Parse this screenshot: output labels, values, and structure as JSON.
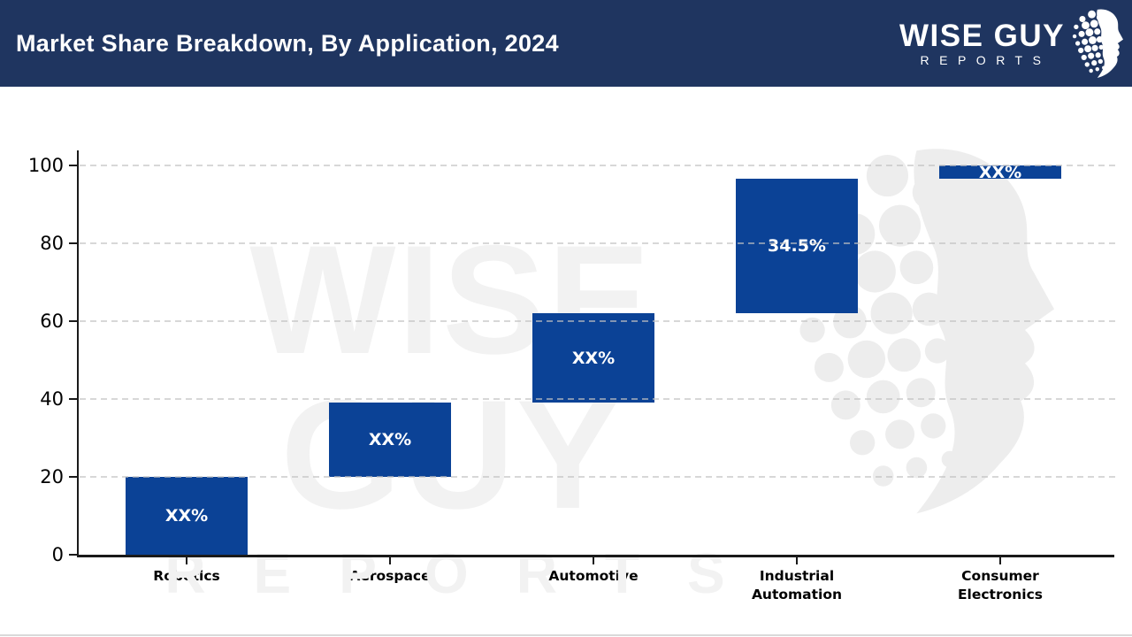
{
  "header": {
    "title": "Market Share Breakdown, By Application, 2024",
    "logo": {
      "name": "WISE GUY",
      "tagline": "REPORTS"
    }
  },
  "watermark": {
    "line1": "WISE GUY",
    "line2": "REPORTS"
  },
  "chart_data": {
    "type": "bar",
    "subtype": "waterfall",
    "title": "Market Share Breakdown, By Application, 2024",
    "categories": [
      "Robotics",
      "Aerospace",
      "Automotive",
      "Industrial Automation",
      "Consumer Electronics"
    ],
    "segments": [
      {
        "category": "Robotics",
        "start": 0,
        "end": 20,
        "value_label": "XX%"
      },
      {
        "category": "Aerospace",
        "start": 20,
        "end": 39,
        "value_label": "XX%"
      },
      {
        "category": "Automotive",
        "start": 39,
        "end": 62,
        "value_label": "XX%"
      },
      {
        "category": "Industrial Automation",
        "start": 62,
        "end": 96.5,
        "value_label": "34.5%"
      },
      {
        "category": "Consumer Electronics",
        "start": 96.5,
        "end": 100,
        "value_label": "XX%"
      }
    ],
    "yticks": [
      0,
      20,
      40,
      60,
      80,
      100
    ],
    "ylim": [
      0,
      100
    ],
    "xlabel": "",
    "ylabel": "",
    "grid": "horizontal-dashed",
    "legend": "none"
  },
  "colors": {
    "header_bg": "#1f3560",
    "header_text": "#ffffff",
    "bar": "#0b4296",
    "bar_label_text": "#ffffff",
    "axis": "#1a1a1a",
    "gridline": "#c2c2c2",
    "watermark": "#f2f2f2",
    "page_bg": "#ffffff"
  }
}
